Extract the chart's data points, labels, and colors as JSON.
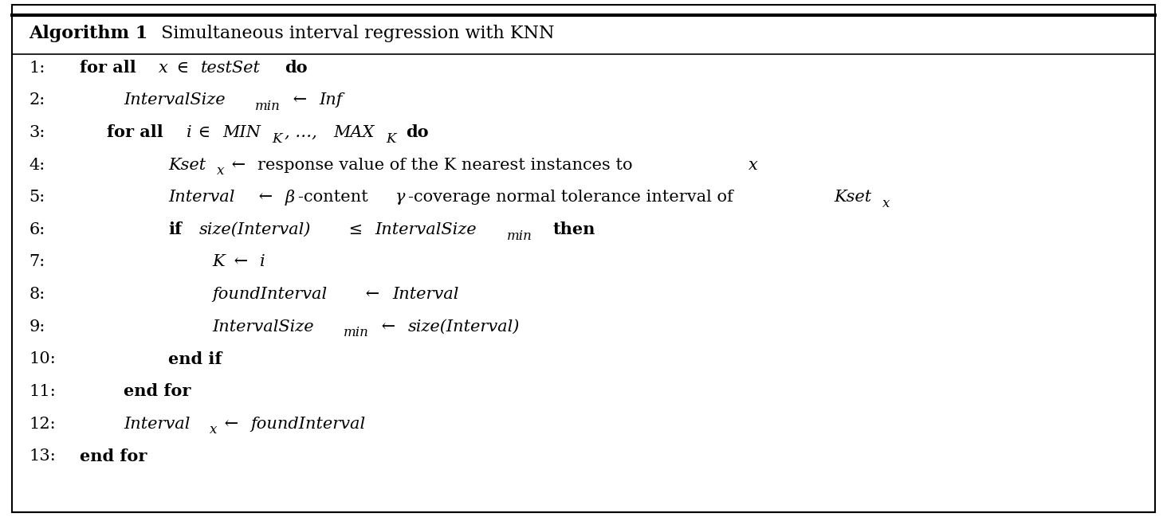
{
  "title_bold": "Algorithm 1",
  "title_normal": " Simultaneous interval regression with KNN",
  "background_color": "#ffffff",
  "border_color": "#000000",
  "text_color": "#000000",
  "figsize": [
    14.64,
    6.49
  ],
  "dpi": 100,
  "lines": [
    {
      "num": "1:",
      "indent": 0,
      "parts": [
        {
          "text": "for all",
          "style": "bold"
        },
        {
          "text": " ",
          "style": "normal"
        },
        {
          "text": "x",
          "style": "italic"
        },
        {
          "text": " ∈ ",
          "style": "normal"
        },
        {
          "text": "testSet",
          "style": "italic"
        },
        {
          "text": " ",
          "style": "normal"
        },
        {
          "text": "do",
          "style": "bold"
        }
      ]
    },
    {
      "num": "2:",
      "indent": 1,
      "parts": [
        {
          "text": "IntervalSize",
          "style": "italic"
        },
        {
          "text": "min",
          "style": "italic_sub"
        },
        {
          "text": " ← ",
          "style": "normal"
        },
        {
          "text": "Inf",
          "style": "italic"
        }
      ]
    },
    {
      "num": "3:",
      "indent": 0,
      "parts": [
        {
          "text": "    ",
          "style": "normal"
        },
        {
          "text": "for all",
          "style": "bold"
        },
        {
          "text": " ",
          "style": "normal"
        },
        {
          "text": "i",
          "style": "italic"
        },
        {
          "text": " ∈ ",
          "style": "normal"
        },
        {
          "text": "MIN",
          "style": "italic"
        },
        {
          "text": "K",
          "style": "italic_sub"
        },
        {
          "text": ", …, ",
          "style": "italic"
        },
        {
          "text": "MAX",
          "style": "italic"
        },
        {
          "text": "K",
          "style": "italic_sub"
        },
        {
          "text": " ",
          "style": "normal"
        },
        {
          "text": "do",
          "style": "bold"
        }
      ]
    },
    {
      "num": "4:",
      "indent": 2,
      "parts": [
        {
          "text": "Kset",
          "style": "italic"
        },
        {
          "text": "x",
          "style": "italic_sub"
        },
        {
          "text": " ← ",
          "style": "normal"
        },
        {
          "text": "response value of the K nearest instances to ",
          "style": "normal"
        },
        {
          "text": "x",
          "style": "italic"
        }
      ]
    },
    {
      "num": "5:",
      "indent": 2,
      "parts": [
        {
          "text": "Interval",
          "style": "italic"
        },
        {
          "text": " ← ",
          "style": "normal"
        },
        {
          "text": "β",
          "style": "italic"
        },
        {
          "text": "-content ",
          "style": "normal"
        },
        {
          "text": "γ",
          "style": "italic"
        },
        {
          "text": "-coverage normal tolerance interval of ",
          "style": "normal"
        },
        {
          "text": "Kset",
          "style": "italic"
        },
        {
          "text": "x",
          "style": "italic_sub"
        }
      ]
    },
    {
      "num": "6:",
      "indent": 2,
      "parts": [
        {
          "text": "if",
          "style": "bold"
        },
        {
          "text": "  ",
          "style": "normal"
        },
        {
          "text": "size(Interval)",
          "style": "italic"
        },
        {
          "text": " ≤ ",
          "style": "normal"
        },
        {
          "text": "IntervalSize",
          "style": "italic"
        },
        {
          "text": "min",
          "style": "italic_sub"
        },
        {
          "text": "  ",
          "style": "normal"
        },
        {
          "text": "then",
          "style": "bold"
        }
      ]
    },
    {
      "num": "7:",
      "indent": 3,
      "parts": [
        {
          "text": "K",
          "style": "italic"
        },
        {
          "text": " ← ",
          "style": "normal"
        },
        {
          "text": "i",
          "style": "italic"
        }
      ]
    },
    {
      "num": "8:",
      "indent": 3,
      "parts": [
        {
          "text": "foundInterval",
          "style": "italic"
        },
        {
          "text": " ← ",
          "style": "normal"
        },
        {
          "text": "Interval",
          "style": "italic"
        }
      ]
    },
    {
      "num": "9:",
      "indent": 3,
      "parts": [
        {
          "text": "IntervalSize",
          "style": "italic"
        },
        {
          "text": "min",
          "style": "italic_sub"
        },
        {
          "text": " ← ",
          "style": "normal"
        },
        {
          "text": "size(Interval)",
          "style": "italic"
        }
      ]
    },
    {
      "num": "10:",
      "indent": 2,
      "parts": [
        {
          "text": "end if",
          "style": "bold"
        }
      ]
    },
    {
      "num": "11:",
      "indent": 1,
      "parts": [
        {
          "text": "end for",
          "style": "bold"
        }
      ]
    },
    {
      "num": "12:",
      "indent": 1,
      "parts": [
        {
          "text": "Interval",
          "style": "italic"
        },
        {
          "text": "x",
          "style": "italic_sub"
        },
        {
          "text": " ← ",
          "style": "normal"
        },
        {
          "text": "foundInterval",
          "style": "italic"
        }
      ]
    },
    {
      "num": "13:",
      "indent": 0,
      "parts": [
        {
          "text": "end for",
          "style": "bold"
        }
      ]
    }
  ]
}
